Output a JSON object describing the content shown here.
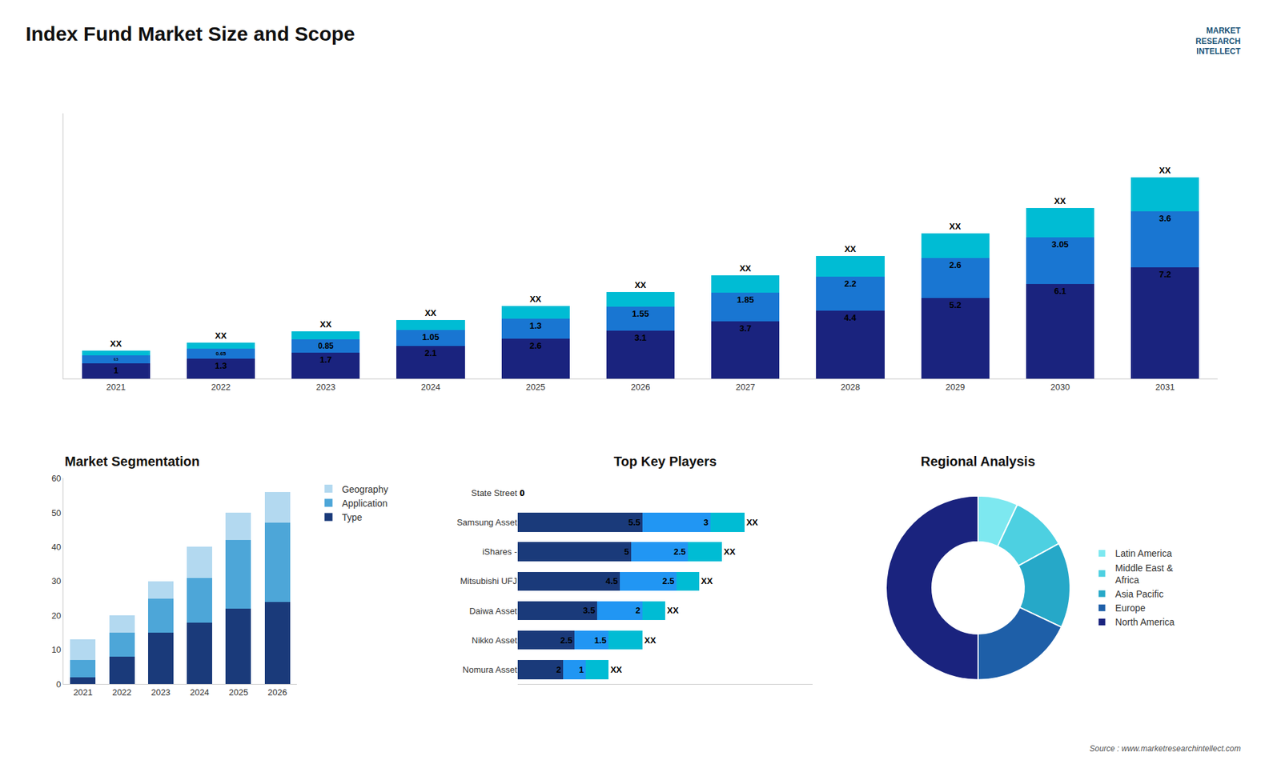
{
  "chart_data": [
    {
      "type": "bar",
      "title": "Index Fund Market Size and Scope",
      "categories": [
        "2021",
        "2022",
        "2023",
        "2024",
        "2025",
        "2026",
        "2027",
        "2028",
        "2029",
        "2030",
        "2031"
      ],
      "series": [
        {
          "color": "#1a237e",
          "values": [
            1.0,
            1.3,
            1.7,
            2.1,
            2.6,
            3.1,
            3.7,
            4.4,
            5.2,
            6.1,
            7.2
          ]
        },
        {
          "color": "#1976d2",
          "values": [
            0.5,
            0.65,
            0.85,
            1.05,
            1.3,
            1.55,
            1.85,
            2.2,
            2.6,
            3.05,
            3.6
          ]
        },
        {
          "color": "#00bcd4",
          "values": [
            0.3,
            0.4,
            0.5,
            0.65,
            0.8,
            0.95,
            1.15,
            1.35,
            1.6,
            1.9,
            2.2
          ],
          "value_labels": [
            "XX",
            "XX",
            "XX",
            "XX",
            "XX",
            "XX",
            "XX",
            "XX",
            "XX",
            "XX",
            "XX"
          ]
        }
      ],
      "stacked": true,
      "data_labels": true,
      "ylim": [
        0,
        17.16
      ],
      "tick_labels": "x",
      "grid": false,
      "annotations": [
        "MARKET\nRESEARCH\nINTELLECT",
        "Source : www.marketresearchintellect.com"
      ]
    },
    {
      "type": "bar",
      "title": "Market Segmentation",
      "categories": [
        "2021",
        "2022",
        "2023",
        "2024",
        "2025",
        "2026"
      ],
      "series": [
        {
          "name": "Type",
          "color": "#1a3a7a",
          "values": [
            2,
            8,
            15,
            18,
            22,
            24
          ]
        },
        {
          "name": "Application",
          "color": "#4da6d8",
          "values": [
            5,
            7,
            10,
            13,
            20,
            23
          ]
        },
        {
          "name": "Geography",
          "color": "#b3d9f0",
          "values": [
            6,
            5,
            5,
            9,
            8,
            9
          ]
        }
      ],
      "stacked": true,
      "ylim": [
        0,
        60
      ],
      "yticks": [
        0,
        10,
        20,
        30,
        40,
        50,
        60
      ],
      "grid": false,
      "legend": "right"
    },
    {
      "type": "bar",
      "title": "Top Key Players",
      "orientation": "horizontal",
      "categories": [
        "State Street",
        "Samsung Asset",
        "iShares -",
        "Mitsubishi UFJ",
        "Daiwa Asset",
        "Nikko Asset",
        "Nomura Asset"
      ],
      "series": [
        {
          "color": "#1a3a7a",
          "values": [
            0,
            5.5,
            5.0,
            4.5,
            3.5,
            2.5,
            2.0
          ]
        },
        {
          "color": "#2196f3",
          "values": [
            0,
            3.0,
            2.5,
            2.5,
            2.0,
            1.5,
            1.0
          ]
        },
        {
          "color": "#00bcd4",
          "values": [
            0,
            1.5,
            1.5,
            1.0,
            1.0,
            1.5,
            1.0
          ],
          "value_labels": [
            null,
            "XX",
            "XX",
            "XX",
            "XX",
            "XX",
            "XX"
          ]
        }
      ],
      "stacked": true,
      "data_labels": true,
      "xlim": [
        0,
        13
      ],
      "tick_labels": "y",
      "grid": false
    },
    {
      "type": "donut",
      "title": "Regional Analysis",
      "categories": [
        "Latin America",
        "Middle East &\nAfrica",
        "Asia Pacific",
        "Europe",
        "North America"
      ],
      "values": [
        7,
        10,
        15,
        18,
        50
      ],
      "colors": [
        "#7de8f0",
        "#4dd0e1",
        "#26a8c8",
        "#1e5fa8",
        "#1a237e"
      ],
      "legend": "right"
    }
  ]
}
